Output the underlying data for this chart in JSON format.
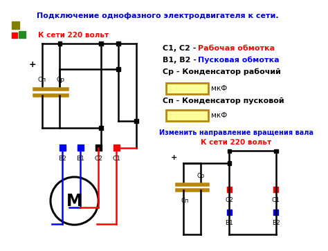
{
  "title": "Подключение однофазного электродвигателя к сети.",
  "title_color": "#0000CC",
  "bg_color": "#FFFFFF",
  "supply_label": "К сети 220 вольт",
  "motor_label": "М",
  "legend_c_black": "С1, С2 - ",
  "legend_c_red": "Рабочая обмотка",
  "legend_b_black": "В1, В2 - ",
  "legend_b_blue": "Пусковая обмотка",
  "legend_cr": "Ср - Конденсатор рабочий",
  "legend_mkf1": "мкФ",
  "legend_cp": "Сп - Конденсатор пусковой",
  "legend_mkf2": "мкФ",
  "legend_rotate_blue": "Изменить направление вращения вала",
  "legend_rotate_red": "К сети 220 вольт",
  "color_red": "#FF0000",
  "color_blue": "#0000FF",
  "color_black": "#000000",
  "color_dark_yellow": "#B8860B",
  "cap_fill": "#FFFF99",
  "color_olive": "#808000",
  "color_green": "#228B22"
}
